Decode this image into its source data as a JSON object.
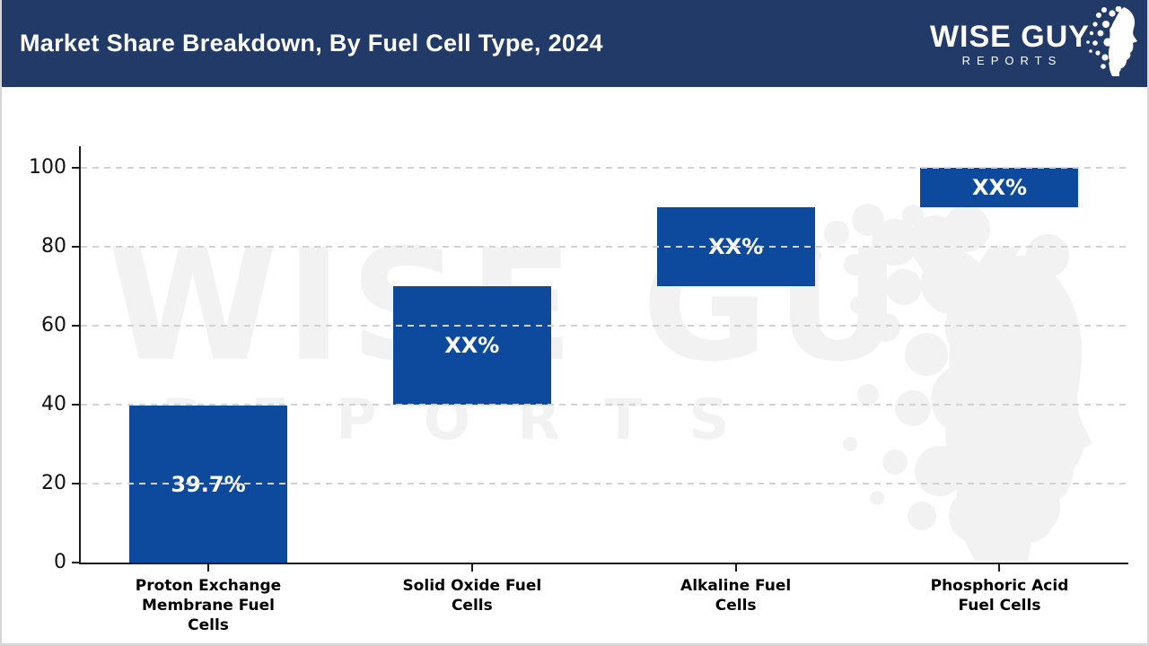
{
  "header": {
    "title": "Market Share Breakdown, By Fuel Cell Type, 2024",
    "bg_color": "#223a68",
    "logo": {
      "line1": "WISE GUY",
      "line2": "REPORTS"
    }
  },
  "watermark": {
    "line1": "WISE GUY",
    "line2": "REPORTS"
  },
  "chart_data": {
    "type": "bar",
    "variant": "waterfall",
    "title": "Market Share Breakdown, By Fuel Cell Type, 2024",
    "units": "percent market share",
    "categories": [
      "Proton Exchange Membrane Fuel Cells",
      "Solid Oxide Fuel Cells",
      "Alkaline Fuel Cells",
      "Phosphoric Acid Fuel Cells"
    ],
    "bars": [
      {
        "category_lines": [
          "Proton Exchange",
          "Membrane Fuel",
          "Cells"
        ],
        "start": 0,
        "end": 39.7,
        "label": "39.7%"
      },
      {
        "category_lines": [
          "Solid Oxide Fuel",
          "Cells"
        ],
        "start": 40,
        "end": 70,
        "label": "XX%"
      },
      {
        "category_lines": [
          "Alkaline Fuel",
          "Cells"
        ],
        "start": 70,
        "end": 90,
        "label": "XX%"
      },
      {
        "category_lines": [
          "Phosphoric Acid",
          "Fuel Cells"
        ],
        "start": 90,
        "end": 100,
        "label": "XX%"
      }
    ],
    "values_visible": [
      39.7,
      null,
      null,
      null
    ],
    "ylim": [
      0,
      100
    ],
    "yticks": [
      0,
      20,
      40,
      60,
      80,
      100
    ],
    "grid": "horizontal-dashed",
    "legend": "none",
    "colors": {
      "bar": "#0d4a9e",
      "bar_label": "#ffffff",
      "header_bg": "#223a68",
      "gridline": "#d2d2d2",
      "axis": "#1a1a1a",
      "watermark": "#f2f2f3"
    }
  }
}
